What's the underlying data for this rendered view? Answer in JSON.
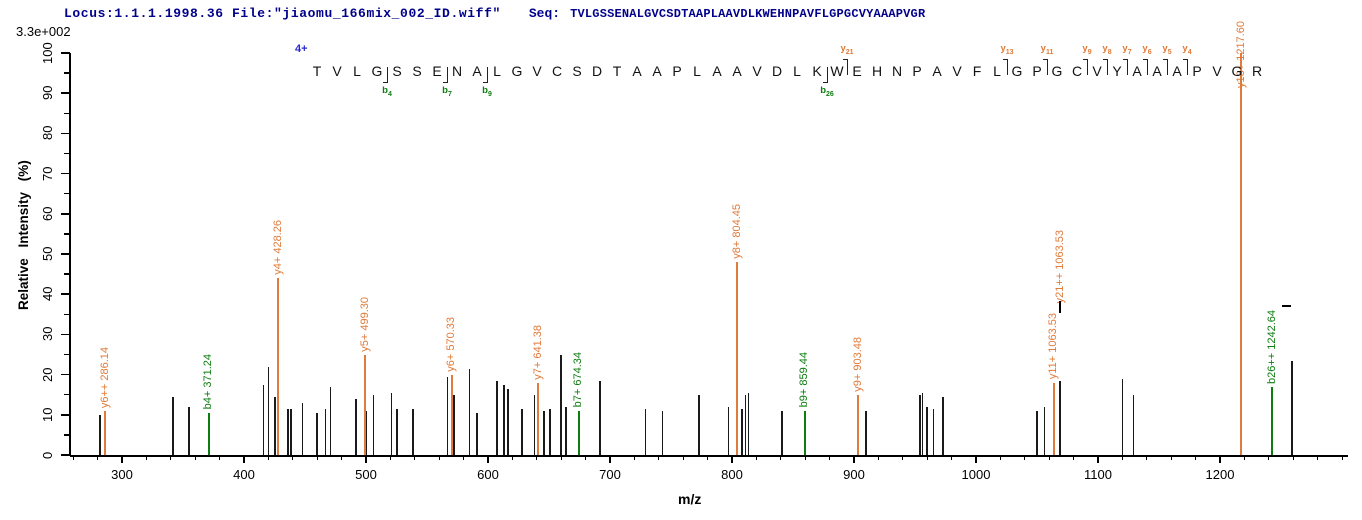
{
  "header": {
    "locus_file": "Locus:1.1.1.1998.36 File:\"jiaomu_166mix_002_ID.wiff\"",
    "seq_label": "Seq:",
    "sequence": "TVLGSSENALGVCSDTAAPLAAVDLKWEHNPAVFLGPGCVYAAAPVGR"
  },
  "colors": {
    "header_text": "#00008b",
    "y_ion_orange": "#e07b3a",
    "b_ion_green": "#0e7d10",
    "peak_black": "#1a1a1a",
    "charge_blue": "#2a2ace",
    "axis": "#000000"
  },
  "sequence_display": {
    "charge_label": "4+",
    "residues": "TVLGSSENALGVCSDTAAPLAAVDLKWEHNPAVFLGPGCVYAAAPVGR",
    "b_markers": [
      {
        "after": 4,
        "ion": "b",
        "sub": "4"
      },
      {
        "after": 7,
        "ion": "b",
        "sub": "7"
      },
      {
        "after": 9,
        "ion": "b",
        "sub": "9"
      },
      {
        "after": 26,
        "ion": "b",
        "sub": "26"
      }
    ],
    "y_markers": [
      {
        "after": 27,
        "ion": "y",
        "sub": "21"
      },
      {
        "after": 35,
        "ion": "y",
        "sub": "13"
      },
      {
        "after": 37,
        "ion": "y",
        "sub": "11"
      },
      {
        "after": 39,
        "ion": "y",
        "sub": "9"
      },
      {
        "after": 40,
        "ion": "y",
        "sub": "8"
      },
      {
        "after": 41,
        "ion": "y",
        "sub": "7"
      },
      {
        "after": 42,
        "ion": "y",
        "sub": "6"
      },
      {
        "after": 43,
        "ion": "y",
        "sub": "5"
      },
      {
        "after": 44,
        "ion": "y",
        "sub": "4"
      }
    ]
  },
  "chart_data": {
    "type": "bar",
    "subtype": "mass-spectrum-stick-plot",
    "xlabel": "m/z",
    "ylabel": "Relative  Intensity  (%)",
    "y_axis_top_label": "3.3e+002",
    "x_range": [
      257,
      1305
    ],
    "y_range": [
      0,
      100
    ],
    "x_major_ticks": [
      300,
      400,
      500,
      600,
      700,
      800,
      900,
      1000,
      1100,
      1200
    ],
    "x_minor_step": 20,
    "y_major_step": 10,
    "y_minor_step": 5,
    "grid": "off",
    "legend": "none",
    "labeled_peaks": [
      {
        "mz": 286.14,
        "pct": 11,
        "ion": "y",
        "label": "y6++ 286.14"
      },
      {
        "mz": 371.24,
        "pct": 10.5,
        "ion": "b",
        "label": "b4+ 371.24"
      },
      {
        "mz": 428.26,
        "pct": 44,
        "ion": "y",
        "label": "y4+ 428.26"
      },
      {
        "mz": 499.3,
        "pct": 25,
        "ion": "y",
        "label": "y5+ 499.30"
      },
      {
        "mz": 570.33,
        "pct": 20,
        "ion": "y",
        "label": "y6+ 570.33"
      },
      {
        "mz": 641.38,
        "pct": 18,
        "ion": "y",
        "label": "y7+ 641.38"
      },
      {
        "mz": 674.34,
        "pct": 11,
        "ion": "b",
        "label": "b7+ 674.34"
      },
      {
        "mz": 804.45,
        "pct": 48,
        "ion": "y",
        "label": "y8+ 804.45"
      },
      {
        "mz": 859.44,
        "pct": 11,
        "ion": "b",
        "label": "b9+ 859.44"
      },
      {
        "mz": 903.48,
        "pct": 15,
        "ion": "y",
        "label": "y9+ 903.48"
      },
      {
        "mz": 1063.53,
        "pct": 18,
        "ion": "y",
        "label": "y11+ 1063.53"
      },
      {
        "mz": 1217.6,
        "pct": 100,
        "ion": "y",
        "label": "y13+ 1217.60",
        "label_at_top": true
      },
      {
        "mz": 1242.64,
        "pct": 17,
        "ion": "b",
        "label": "b26++ 1242.64"
      }
    ],
    "extra_labels": [
      {
        "mz": 1069,
        "label": "y21++ 1063.53",
        "ion": "y",
        "label_base_pct": 37.8
      }
    ],
    "leader_ticks": [
      {
        "type": "v",
        "mz": 1069,
        "top": 301,
        "len": 12
      },
      {
        "type": "h",
        "mz": 1254.5,
        "top": 305,
        "len": 9
      }
    ],
    "unlabeled_peaks": [
      [
        282,
        10
      ],
      [
        342,
        14.5
      ],
      [
        355,
        12
      ],
      [
        416,
        17.5
      ],
      [
        420,
        22
      ],
      [
        425.5,
        14.5
      ],
      [
        436,
        11.5
      ],
      [
        438.5,
        11.5
      ],
      [
        448,
        13
      ],
      [
        460,
        10.5
      ],
      [
        467,
        11.5
      ],
      [
        471,
        17
      ],
      [
        492,
        14
      ],
      [
        500,
        11
      ],
      [
        506,
        15
      ],
      [
        521,
        15.5
      ],
      [
        525.5,
        11.5
      ],
      [
        538.5,
        11.5
      ],
      [
        567,
        19.5
      ],
      [
        572,
        15
      ],
      [
        585,
        21.5
      ],
      [
        591,
        10.5
      ],
      [
        607.5,
        18.5
      ],
      [
        613,
        17.5
      ],
      [
        616.5,
        16.5
      ],
      [
        628,
        11.5
      ],
      [
        638,
        15
      ],
      [
        646,
        11
      ],
      [
        651,
        11.5
      ],
      [
        660,
        25
      ],
      [
        664,
        12
      ],
      [
        692,
        18.5
      ],
      [
        729,
        11.5
      ],
      [
        743,
        11
      ],
      [
        773,
        15
      ],
      [
        797,
        12
      ],
      [
        808,
        11.5
      ],
      [
        811,
        15
      ],
      [
        813.5,
        15.5
      ],
      [
        841,
        11
      ],
      [
        910,
        11
      ],
      [
        954,
        15
      ],
      [
        956,
        15.5
      ],
      [
        960,
        12
      ],
      [
        965,
        11.5
      ],
      [
        973,
        14.5
      ],
      [
        1050,
        11
      ],
      [
        1056,
        12
      ],
      [
        1069,
        18.5
      ],
      [
        1120,
        19
      ],
      [
        1129,
        15
      ],
      [
        1259,
        23.5
      ]
    ]
  }
}
